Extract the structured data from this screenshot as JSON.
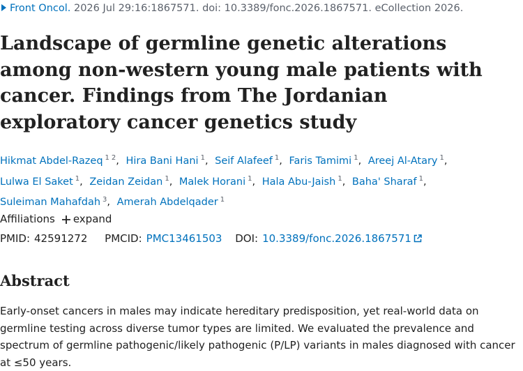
{
  "citation": {
    "journal": "Front Oncol.",
    "details": "2026 Jul 29:16:1867571. doi: 10.3389/fonc.2026.1867571. eCollection 2026."
  },
  "title": "Landscape of germline genetic alterations among non-western young male patients with cancer. Findings from The Jordanian exploratory cancer genetics study",
  "authors": [
    {
      "name": "Hikmat Abdel-Razeq",
      "affiliations": [
        "1",
        "2"
      ]
    },
    {
      "name": "Hira Bani Hani",
      "affiliations": [
        "1"
      ]
    },
    {
      "name": "Seif Alafeef",
      "affiliations": [
        "1"
      ]
    },
    {
      "name": "Faris Tamimi",
      "affiliations": [
        "1"
      ]
    },
    {
      "name": "Areej Al-Atary",
      "affiliations": [
        "1"
      ]
    },
    {
      "name": "Lulwa El Saket",
      "affiliations": [
        "1"
      ]
    },
    {
      "name": "Zeidan Zeidan",
      "affiliations": [
        "1"
      ]
    },
    {
      "name": "Malek Horani",
      "affiliations": [
        "1"
      ]
    },
    {
      "name": "Hala Abu-Jaish",
      "affiliations": [
        "1"
      ]
    },
    {
      "name": "Baha' Sharaf",
      "affiliations": [
        "1"
      ]
    },
    {
      "name": "Suleiman Mahafdah",
      "affiliations": [
        "3"
      ]
    },
    {
      "name": "Amerah Abdelqader",
      "affiliations": [
        "1"
      ]
    }
  ],
  "affiliations": {
    "label": "Affiliations",
    "toggle": "expand"
  },
  "identifiers": {
    "pmid_label": "PMID:",
    "pmid": "42591272",
    "pmcid_label": "PMCID:",
    "pmcid": "PMC13461503",
    "doi_label": "DOI:",
    "doi": "10.3389/fonc.2026.1867571"
  },
  "abstract": {
    "heading": "Abstract",
    "text": "Early-onset cancers in males may indicate hereditary predisposition, yet real-world data on germline testing across diverse tumor types are limited. We evaluated the prevalence and spectrum of germline pathogenic/likely pathogenic (P/LP) variants in males diagnosed with cancer at ≤50 years."
  }
}
